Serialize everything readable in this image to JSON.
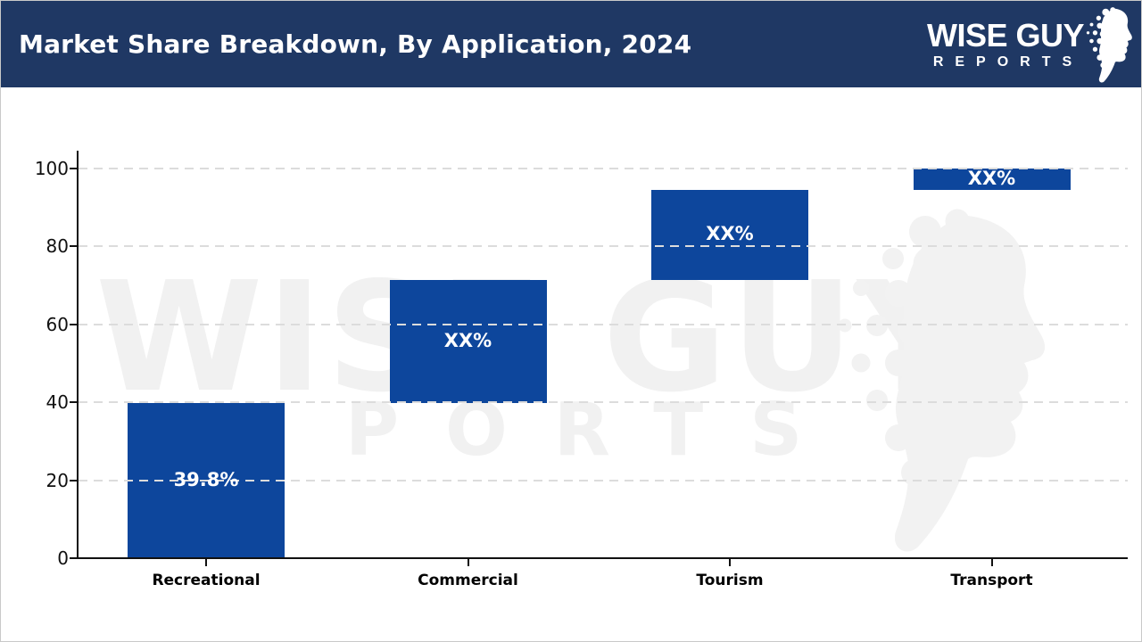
{
  "header": {
    "title": "Market Share Breakdown, By Application, 2024",
    "logo": {
      "line1": "WISE GUY",
      "line2": "REPORTS"
    }
  },
  "watermark": {
    "line1": "WISE GUY",
    "line2": "PORTS"
  },
  "colors": {
    "header_navy": "#1f3864",
    "bar_blue": "#0d469c",
    "bar_label_white": "#ffffff",
    "gridline_gray": "#dcdcdc",
    "watermark_gray": "#f1f1f1"
  },
  "chart_data": {
    "type": "bar",
    "subtype": "waterfall",
    "title": "Market Share Breakdown, By Application, 2024",
    "categories": [
      "Recreational",
      "Commercial",
      "Tourism",
      "Transport"
    ],
    "segments": [
      {
        "category": "Recreational",
        "start": 0,
        "end": 39.8,
        "label": "39.8%"
      },
      {
        "category": "Commercial",
        "start": 39.8,
        "end": 71.5,
        "label": "XX%"
      },
      {
        "category": "Tourism",
        "start": 71.5,
        "end": 94.5,
        "label": "XX%"
      },
      {
        "category": "Transport",
        "start": 94.5,
        "end": 100,
        "label": "XX%"
      }
    ],
    "xlabel": "",
    "ylabel": "",
    "yticks": [
      0,
      20,
      40,
      60,
      80,
      100
    ],
    "ylim": [
      0,
      105
    ],
    "grid": "horizontal-dashed",
    "legend": "none"
  }
}
